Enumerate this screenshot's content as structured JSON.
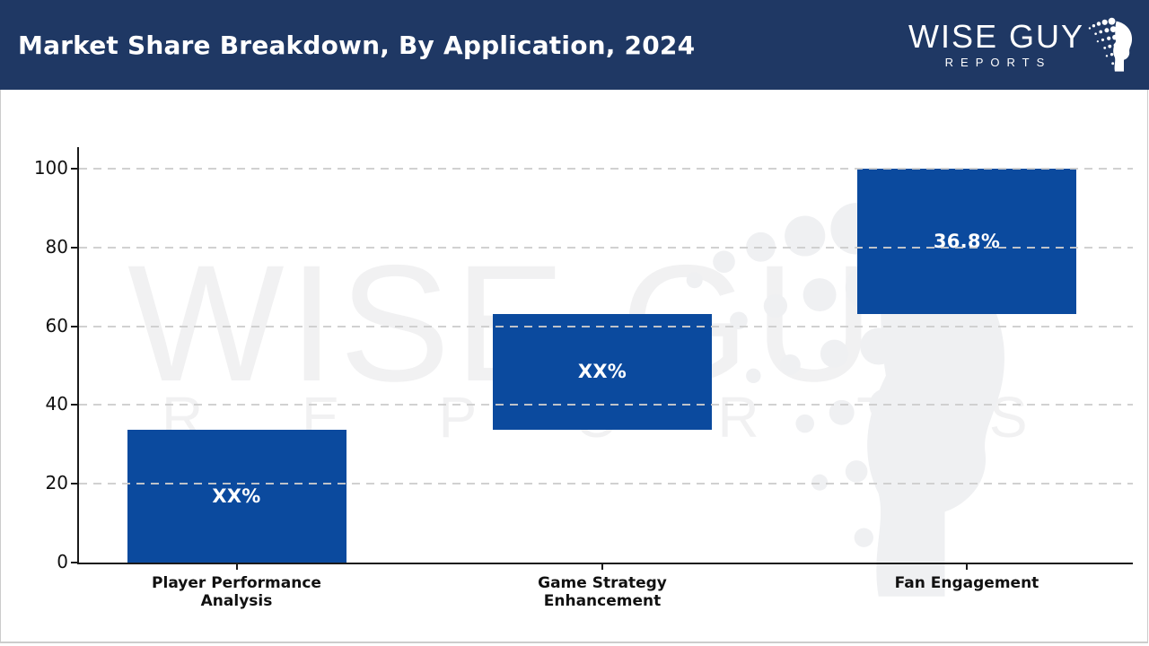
{
  "header": {
    "title": "Market Share Breakdown, By Application, 2024",
    "brand": {
      "name": "WISE GUY",
      "subtitle": "REPORTS"
    }
  },
  "watermark": {
    "line1": "WISE GUY",
    "line2": "R E P O R T S"
  },
  "colors": {
    "header-bg": "#1F3864",
    "bar": "#0B4A9E",
    "grid": "#cdcdcd",
    "axis": "#1a1a1a",
    "text": "#111111",
    "border": "#cccccc",
    "watermark": "#f1f1f2"
  },
  "chart_data": {
    "type": "bar",
    "variant": "floating-segment-waterfall",
    "title": "Market Share Breakdown, By Application, 2024",
    "categories": [
      "Player Performance\nAnalysis",
      "Game Strategy\nEnhancement",
      "Fan Engagement"
    ],
    "segments": [
      {
        "category": "Player Performance Analysis",
        "start": 0,
        "end": 33.7,
        "label": "XX%"
      },
      {
        "category": "Game Strategy Enhancement",
        "start": 33.7,
        "end": 63.2,
        "label": "XX%"
      },
      {
        "category": "Fan Engagement",
        "start": 63.2,
        "end": 100,
        "label": "36.8%"
      }
    ],
    "ylim": [
      0,
      100
    ],
    "yticks": [
      0,
      20,
      40,
      60,
      80,
      100
    ],
    "xlabel": "",
    "ylabel": "",
    "grid": "horizontal dashed, drawn over bars",
    "legend": "none"
  }
}
